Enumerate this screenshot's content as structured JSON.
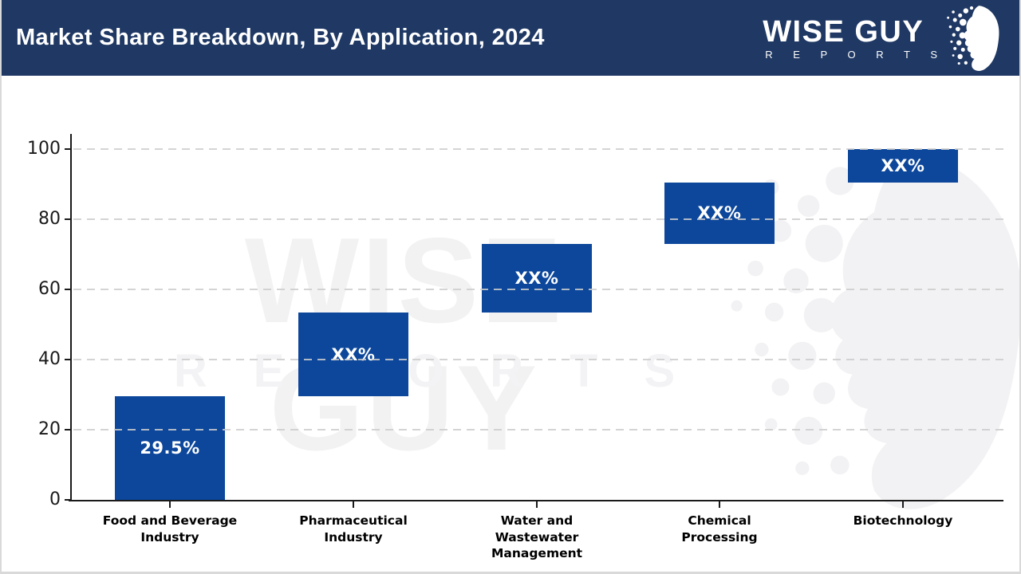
{
  "header": {
    "title": "Market Share Breakdown, By Application, 2024",
    "background": "#1f3864",
    "logo": {
      "wordmark": "WISE GUY",
      "subtitle": "R E P O R T S",
      "face_icon": "dotted-head-profile"
    }
  },
  "watermark": {
    "line1": "WISE GUY",
    "line2": "REPORTS"
  },
  "chart_data": {
    "type": "bar",
    "subtype": "waterfall",
    "title": "Market Share Breakdown, By Application, 2024",
    "categories": [
      "Food and Beverage\nIndustry",
      "Pharmaceutical\nIndustry",
      "Water and\nWastewater\nManagement",
      "Chemical\nProcessing",
      "Biotechnology"
    ],
    "segments": [
      {
        "start": 0,
        "end": 29.5,
        "label": "29.5%"
      },
      {
        "start": 29.5,
        "end": 53.3,
        "label": "XX%"
      },
      {
        "start": 53.5,
        "end": 73,
        "label": "XX%"
      },
      {
        "start": 73,
        "end": 90.5,
        "label": "XX%"
      },
      {
        "start": 90.5,
        "end": 100,
        "label": "XX%"
      }
    ],
    "y_ticks": [
      0,
      20,
      40,
      60,
      80,
      100
    ],
    "ylim": [
      0,
      104
    ],
    "xlabel": "",
    "ylabel": "",
    "grid": "dashed-horizontal",
    "legend": false,
    "bar_color": "#0c479b",
    "axis_color": "#1a1a1a"
  }
}
